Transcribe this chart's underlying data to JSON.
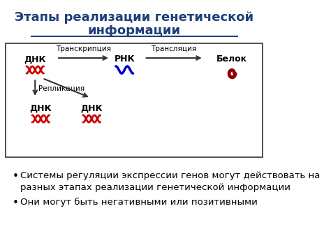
{
  "title_line1": "Этапы реализации генетической",
  "title_line2": "информации",
  "title_color": "#1f3f7a",
  "title_fontsize": 13,
  "box_color": "#333333",
  "text_color": "#000000",
  "dna_color": "#cc0000",
  "rna_color": "#0000cc",
  "protein_color": "#8b0000",
  "arrow_color": "#333333",
  "label_dnk": "ДНК",
  "label_rnk": "РНК",
  "label_belok": "Белок",
  "label_transkrip": "Транскрипция",
  "label_translyac": "Трансляция",
  "label_replic": "Репликация",
  "bullet1": "Системы регуляции экспрессии генов могут действовать на\nразных этапах реализации генетической информации",
  "bullet2": "Они могут быть негативными или позитивными",
  "bullet_fontsize": 9.5
}
